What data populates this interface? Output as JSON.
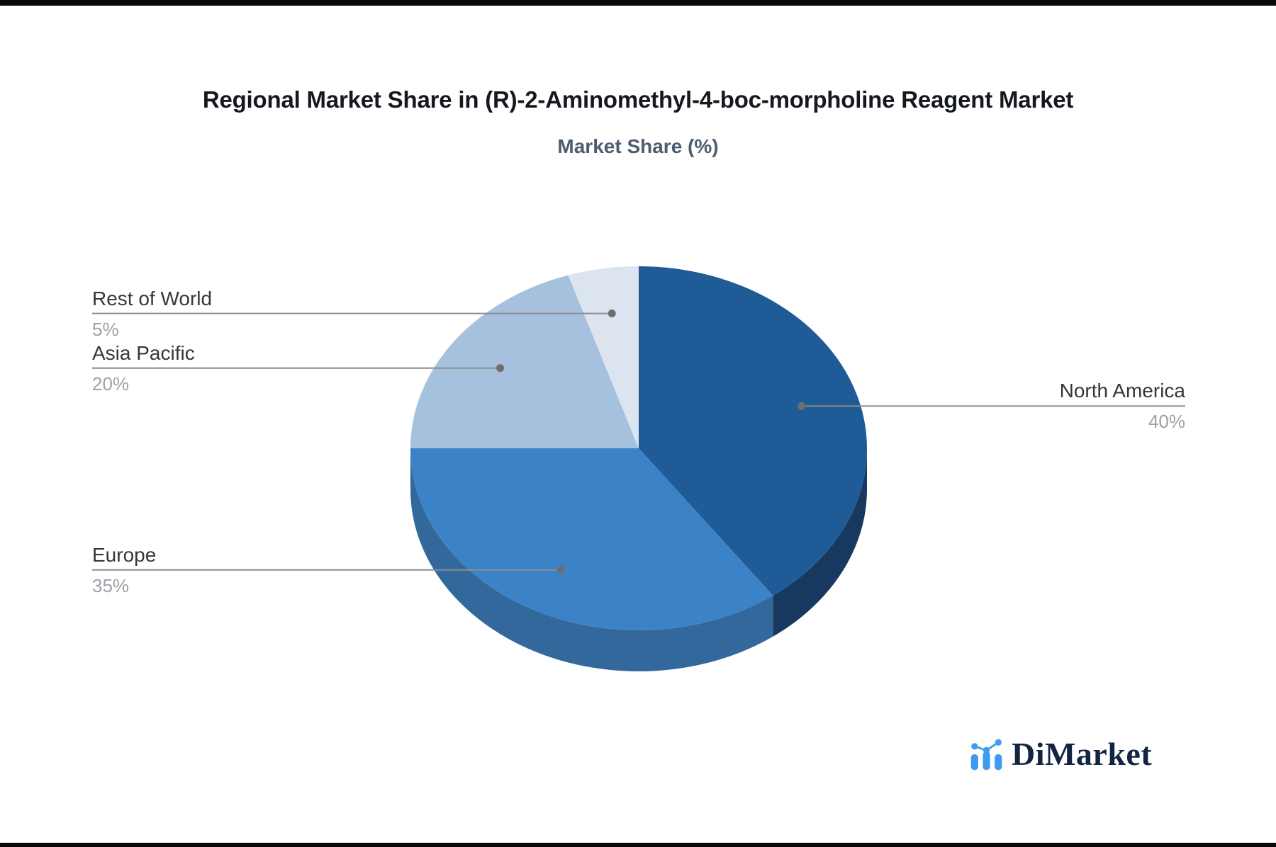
{
  "header": {
    "title": "Regional Market Share in (R)-2-Aminomethyl-4-boc-morpholine Reagent Market",
    "subtitle": "Market Share (%)"
  },
  "chart_data": {
    "type": "pie",
    "title": "Regional Market Share in (R)-2-Aminomethyl-4-boc-morpholine Reagent Market",
    "subtitle": "Market Share (%)",
    "unit": "%",
    "style": "3d-pie",
    "start_angle_deg": 0,
    "direction": "clockwise",
    "legend_position": "callout-labels",
    "slices": [
      {
        "label": "North America",
        "value": 40,
        "display": "40%",
        "color": "#1f5b96",
        "side_color": "#17395f"
      },
      {
        "label": "Europe",
        "value": 35,
        "display": "35%",
        "color": "#3c82c7",
        "side_color": "#32689b"
      },
      {
        "label": "Asia Pacific",
        "value": 20,
        "display": "20%",
        "color": "#a5c1dd",
        "side_color": "#8fafcf"
      },
      {
        "label": "Rest of World",
        "value": 5,
        "display": "5%",
        "color": "#dce4ef",
        "side_color": "#c2cfe0"
      }
    ]
  },
  "logo": {
    "text": "DiMarket",
    "icon": "bar-chart-logo-icon",
    "icon_color": "#3f9bf0",
    "text_color": "#132441"
  },
  "colors": {
    "background": "#ffffff",
    "title_text": "#15191f",
    "subtitle_text": "#4d5c6e",
    "callout_label_text": "#34373b",
    "callout_value_text": "#9ca1a7",
    "leader_line": "#8c8c8c",
    "leader_dot": "#6e6e6e",
    "edge_bar": "#0a0a0a"
  }
}
